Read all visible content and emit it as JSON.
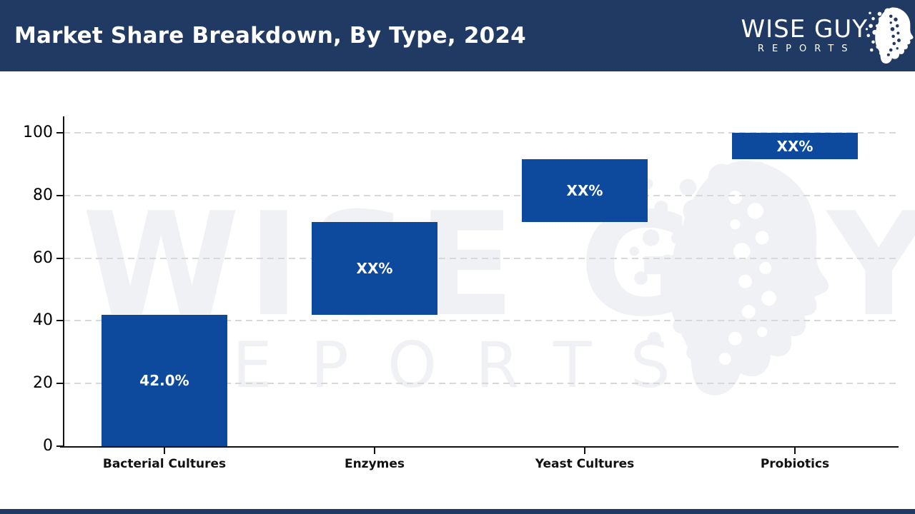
{
  "header": {
    "title": "Market Share Breakdown, By Type, 2024",
    "logo": {
      "line1": "WISE GUY",
      "line2": "REPORTS"
    }
  },
  "watermark": {
    "line1": "WISE GUY",
    "line2": "REPORTS",
    "head_icon": "dotted-head-profile"
  },
  "footer": {
    "bar": ""
  },
  "colors": {
    "header_bg": "#213a64",
    "bar_blue": "#0d4a9e",
    "grid_gray": "#d8d8d8",
    "watermark_gray": "#f0f1f4",
    "title_text": "#ffffff",
    "axis_text": "#000000",
    "bar_label_text": "#ffffff"
  },
  "chart_data": {
    "type": "bar",
    "subtype": "waterfall-stacked-progression",
    "title": "Market Share Breakdown, By Type, 2024",
    "categories": [
      "Bacterial Cultures",
      "Enzymes",
      "Yeast Cultures",
      "Probiotics"
    ],
    "segments": [
      {
        "category": "Bacterial Cultures",
        "start": 0,
        "end": 42,
        "label": "42.0%"
      },
      {
        "category": "Enzymes",
        "start": 42,
        "end": 71.5,
        "label": "XX%"
      },
      {
        "category": "Yeast Cultures",
        "start": 71.5,
        "end": 91.5,
        "label": "XX%"
      },
      {
        "category": "Probiotics",
        "start": 91.5,
        "end": 100,
        "label": "XX%"
      }
    ],
    "xlabel": "",
    "ylabel": "",
    "yticks": [
      0,
      20,
      40,
      60,
      80,
      100
    ],
    "ylim": [
      0,
      105
    ],
    "grid": "horizontal-dashed",
    "legend": "none",
    "bar_color": "#0d4a9e",
    "label_color": "#ffffff"
  }
}
